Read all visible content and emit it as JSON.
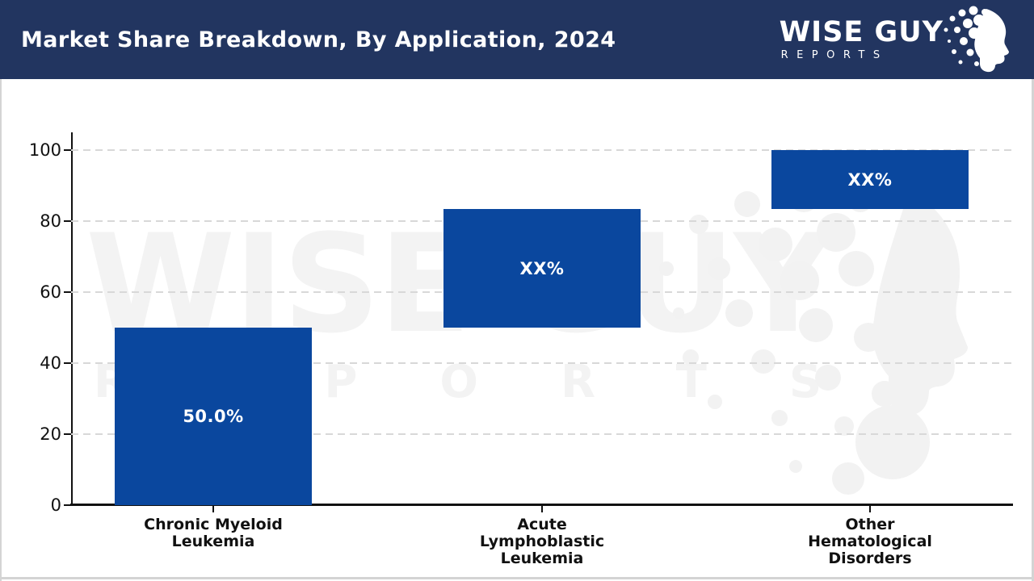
{
  "header": {
    "title": "Market Share Breakdown, By Application, 2024",
    "bg_color": "#223560",
    "logo": {
      "name": "WISE GUY",
      "sub": "REPORTS"
    }
  },
  "watermark": {
    "line1": "WISE GUY",
    "line2": "REPORTS"
  },
  "icons": {
    "logo_head": "wiseguy-dotted-face-icon",
    "watermark_head": "wiseguy-dotted-face-watermark-icon"
  },
  "chart_data": {
    "type": "bar",
    "variant": "floating-segments (cumulative market-share breakdown)",
    "title": "Market Share Breakdown, By Application, 2024",
    "categories": [
      [
        "Chronic Myeloid",
        "Leukemia"
      ],
      [
        "Acute",
        "Lymphoblastic",
        "Leukemia"
      ],
      [
        "Other",
        "Hematological",
        "Disorders"
      ]
    ],
    "bars": [
      {
        "start": 0,
        "end": 50,
        "label": "50.0%"
      },
      {
        "start": 50,
        "end": 83.3,
        "label": "XX%"
      },
      {
        "start": 83.3,
        "end": 100,
        "label": "XX%"
      }
    ],
    "yticks": [
      0,
      20,
      40,
      60,
      80,
      100
    ],
    "ylim": [
      0,
      105
    ],
    "xlabel": "",
    "ylabel": "",
    "grid": "horizontal-dashed",
    "legend": "none",
    "bar_color": "#0a479e",
    "bar_label_color": "#ffffff",
    "axis_color": "#111111",
    "grid_color": "#d8d8d8"
  }
}
